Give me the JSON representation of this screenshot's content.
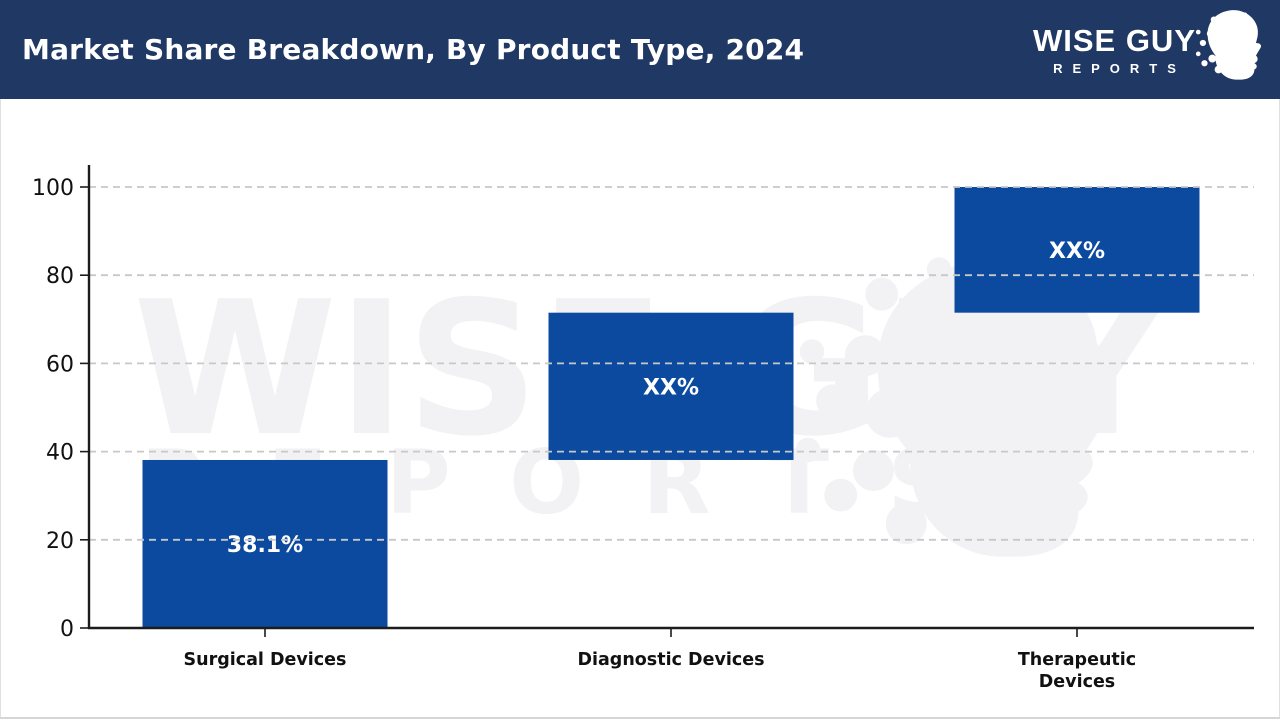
{
  "header": {
    "title": "Market Share Breakdown, By Product Type, 2024",
    "logo": {
      "line1": "WISE GUY",
      "line2": "REPORTS"
    }
  },
  "watermark": {
    "line1": "WISE GUY",
    "line2": "R E P O R T S"
  },
  "chart_data": {
    "type": "bar",
    "subtype": "floating-stacked-waterfall",
    "title": "Market Share Breakdown, By Product Type, 2024",
    "categories": [
      "Surgical Devices",
      "Diagnostic Devices",
      "Therapeutic\nDevices"
    ],
    "bars": [
      {
        "category": "Surgical Devices",
        "start": 0,
        "end": 38.1,
        "label": "38.1%"
      },
      {
        "category": "Diagnostic Devices",
        "start": 38.1,
        "end": 71.5,
        "label": "XX%"
      },
      {
        "category": "Therapeutic Devices",
        "start": 71.5,
        "end": 100,
        "label": "XX%"
      }
    ],
    "yticks": [
      0,
      20,
      40,
      60,
      80,
      100
    ],
    "ylim": [
      0,
      105
    ],
    "grid": "horizontal-dashed",
    "legend": "none"
  },
  "colors": {
    "header_bg": "#203864",
    "bar": "#0b4a9f",
    "bar_label": "#ffffff",
    "grid": "#c8c8c8",
    "axis": "#1c1c1c",
    "tick_label": "#111111",
    "watermark": "#f2f2f4",
    "border": "#d6d6d6"
  }
}
